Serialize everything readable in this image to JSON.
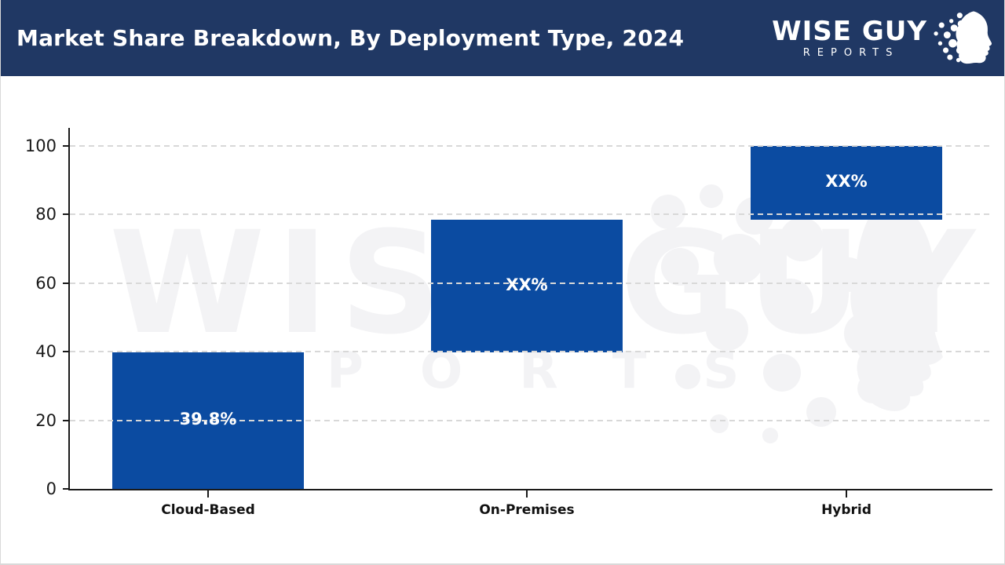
{
  "header": {
    "title": "Market Share Breakdown, By Deployment Type, 2024",
    "logo": {
      "line1": "WISE GUY",
      "line2": "REPORTS"
    }
  },
  "watermark": {
    "line1": "WISE GUY",
    "line2": "REPORTS"
  },
  "chart_data": {
    "type": "bar",
    "subtype": "floating-waterfall",
    "title": "Market Share Breakdown, By Deployment Type, 2024",
    "xlabel": "",
    "ylabel": "",
    "categories": [
      "Cloud-Based",
      "On-Premises",
      "Hybrid"
    ],
    "bars": [
      {
        "category": "Cloud-Based",
        "start": 0,
        "end": 39.8,
        "label": "39.8%"
      },
      {
        "category": "On-Premises",
        "start": 39.8,
        "end": 78.5,
        "label": "XX%"
      },
      {
        "category": "Hybrid",
        "start": 78.5,
        "end": 100,
        "label": "XX%"
      }
    ],
    "yticks": [
      0,
      20,
      40,
      60,
      80,
      100
    ],
    "ylim": [
      0,
      100
    ],
    "grid": "horizontal-dashed",
    "legend": "none",
    "bar_color": "#0b4ba1",
    "bar_label_color": "#ffffff",
    "axis_color": "#1a1a1a",
    "gridline_color": "#d8d8d8",
    "header_color": "#203864"
  }
}
